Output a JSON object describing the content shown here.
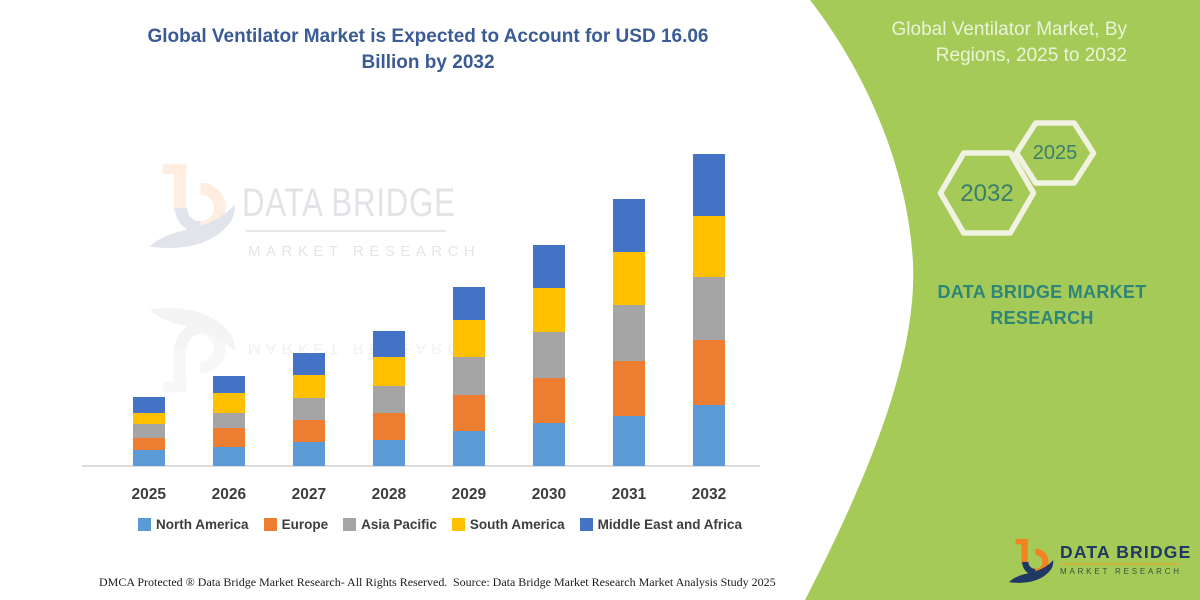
{
  "title": {
    "line1": "Global Ventilator Market is Expected to Account for USD 16.06",
    "line2": "Billion by 2032"
  },
  "side_panel": {
    "title_line1": "Global Ventilator Market, By",
    "title_line2": "Regions, 2025 to 2032",
    "hexagon_large": "2032",
    "hexagon_small": "2025",
    "brand_line1": "DATA BRIDGE MARKET",
    "brand_line2": "RESEARCH",
    "panel_color": "#A5CA57",
    "hex_outline_color": "#F1F2E2",
    "brand_text_color": "#2E857A"
  },
  "watermark": {
    "brand": "DATA BRIDGE",
    "sub": "MARKET RESEARCH"
  },
  "logo": {
    "brand": "DATA BRIDGE",
    "sub": "MARKET RESEARCH",
    "orange": "#F58220",
    "navy": "#203864"
  },
  "footer": {
    "left": "DMCA Protected ® Data Bridge Market Research-  All Rights Reserved.",
    "right": "Source: Data Bridge Market Research  Market Analysis Study 2025"
  },
  "chart_data": {
    "type": "bar",
    "stacked": true,
    "title": "Global Ventilator Market is Expected to Account for USD 16.06 Billion by 2032",
    "unit": "USD Billion",
    "xlabel": "",
    "ylabel": "",
    "ylim": [
      0,
      16.5
    ],
    "gridlines": false,
    "legend_position": "bottom",
    "categories": [
      "2025",
      "2026",
      "2027",
      "2028",
      "2029",
      "2030",
      "2031",
      "2032"
    ],
    "series": [
      {
        "name": "North America",
        "color": "#5B9BD5",
        "values": [
          0.82,
          1.0,
          1.22,
          1.34,
          1.82,
          2.19,
          2.59,
          3.13
        ]
      },
      {
        "name": "Europe",
        "color": "#ED7D31",
        "values": [
          0.64,
          0.98,
          1.15,
          1.38,
          1.85,
          2.33,
          2.83,
          3.35
        ]
      },
      {
        "name": "Asia Pacific",
        "color": "#A5A5A5",
        "values": [
          0.69,
          0.74,
          1.12,
          1.41,
          1.93,
          2.38,
          2.86,
          3.23
        ]
      },
      {
        "name": "South America",
        "color": "#FFC000",
        "values": [
          0.57,
          1.03,
          1.2,
          1.46,
          1.9,
          2.28,
          2.76,
          3.16
        ]
      },
      {
        "name": "Middle East and Africa",
        "color": "#4472C4",
        "values": [
          0.81,
          0.91,
          1.12,
          1.38,
          1.71,
          2.21,
          2.71,
          3.19
        ]
      }
    ],
    "totals_by_year": [
      3.53,
      4.66,
      5.81,
      6.97,
      9.21,
      11.39,
      13.75,
      16.06
    ],
    "highlight_total": "16.06"
  }
}
